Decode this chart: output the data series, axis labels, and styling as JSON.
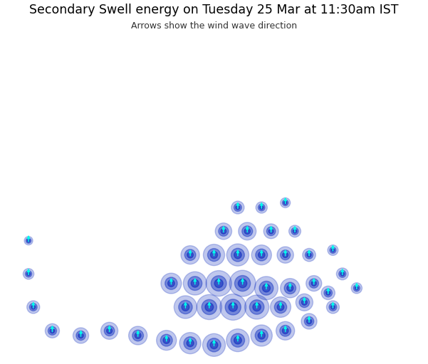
{
  "title": "Secondary Swell energy on Tuesday 25 Mar at 11:30am IST",
  "subtitle": "Arrows show the wind wave direction",
  "title_fontsize": 12.5,
  "subtitle_fontsize": 9.0,
  "fig_width": 6.01,
  "fig_height": 5.12,
  "dpi": 100,
  "map_extent": [
    60.0,
    105.0,
    5.0,
    40.0
  ],
  "title_bg": "#eeeeee",
  "ocean_color": "#000008",
  "arrow_color": "#00ffee",
  "glow_color": "#0022bb",
  "arrows": [
    {
      "lon": 63.0,
      "lat": 18.0,
      "e": 0.3
    },
    {
      "lon": 63.0,
      "lat": 14.5,
      "e": 0.38
    },
    {
      "lon": 63.5,
      "lat": 11.0,
      "e": 0.45
    },
    {
      "lon": 65.5,
      "lat": 8.5,
      "e": 0.5
    },
    {
      "lon": 68.5,
      "lat": 8.0,
      "e": 0.55
    },
    {
      "lon": 71.5,
      "lat": 8.5,
      "e": 0.6
    },
    {
      "lon": 74.5,
      "lat": 8.0,
      "e": 0.65
    },
    {
      "lon": 77.5,
      "lat": 7.5,
      "e": 0.7
    },
    {
      "lon": 80.0,
      "lat": 7.2,
      "e": 0.75
    },
    {
      "lon": 82.5,
      "lat": 7.0,
      "e": 0.8
    },
    {
      "lon": 85.0,
      "lat": 7.5,
      "e": 0.8
    },
    {
      "lon": 87.5,
      "lat": 8.0,
      "e": 0.75
    },
    {
      "lon": 90.0,
      "lat": 8.5,
      "e": 0.65
    },
    {
      "lon": 92.5,
      "lat": 9.5,
      "e": 0.55
    },
    {
      "lon": 95.0,
      "lat": 11.0,
      "e": 0.45
    },
    {
      "lon": 97.5,
      "lat": 13.0,
      "e": 0.38
    },
    {
      "lon": 79.5,
      "lat": 11.0,
      "e": 0.8
    },
    {
      "lon": 82.0,
      "lat": 11.0,
      "e": 0.88
    },
    {
      "lon": 84.5,
      "lat": 11.0,
      "e": 0.92
    },
    {
      "lon": 87.0,
      "lat": 11.0,
      "e": 0.85
    },
    {
      "lon": 89.5,
      "lat": 11.0,
      "e": 0.72
    },
    {
      "lon": 92.0,
      "lat": 11.5,
      "e": 0.6
    },
    {
      "lon": 94.5,
      "lat": 12.5,
      "e": 0.48
    },
    {
      "lon": 78.0,
      "lat": 13.5,
      "e": 0.72
    },
    {
      "lon": 80.5,
      "lat": 13.5,
      "e": 0.82
    },
    {
      "lon": 83.0,
      "lat": 13.5,
      "e": 0.9
    },
    {
      "lon": 85.5,
      "lat": 13.5,
      "e": 0.92
    },
    {
      "lon": 88.0,
      "lat": 13.0,
      "e": 0.82
    },
    {
      "lon": 90.5,
      "lat": 13.0,
      "e": 0.68
    },
    {
      "lon": 93.0,
      "lat": 13.5,
      "e": 0.55
    },
    {
      "lon": 96.0,
      "lat": 14.5,
      "e": 0.42
    },
    {
      "lon": 80.0,
      "lat": 16.5,
      "e": 0.65
    },
    {
      "lon": 82.5,
      "lat": 16.5,
      "e": 0.75
    },
    {
      "lon": 85.0,
      "lat": 16.5,
      "e": 0.78
    },
    {
      "lon": 87.5,
      "lat": 16.5,
      "e": 0.7
    },
    {
      "lon": 90.0,
      "lat": 16.5,
      "e": 0.58
    },
    {
      "lon": 92.5,
      "lat": 16.5,
      "e": 0.46
    },
    {
      "lon": 95.0,
      "lat": 17.0,
      "e": 0.37
    },
    {
      "lon": 83.5,
      "lat": 19.0,
      "e": 0.58
    },
    {
      "lon": 86.0,
      "lat": 19.0,
      "e": 0.62
    },
    {
      "lon": 88.5,
      "lat": 19.0,
      "e": 0.52
    },
    {
      "lon": 91.0,
      "lat": 19.0,
      "e": 0.42
    },
    {
      "lon": 85.0,
      "lat": 21.5,
      "e": 0.45
    },
    {
      "lon": 87.5,
      "lat": 21.5,
      "e": 0.4
    },
    {
      "lon": 90.0,
      "lat": 22.0,
      "e": 0.35
    }
  ]
}
